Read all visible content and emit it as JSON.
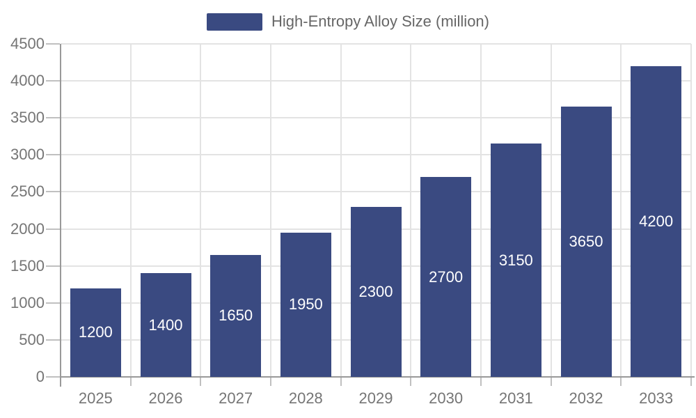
{
  "legend": {
    "label": "High-Entropy Alloy Size (million)"
  },
  "chart_data": {
    "type": "bar",
    "title": "",
    "xlabel": "",
    "ylabel": "",
    "categories": [
      "2025",
      "2026",
      "2027",
      "2028",
      "2029",
      "2030",
      "2031",
      "2032",
      "2033"
    ],
    "series": [
      {
        "name": "High-Entropy Alloy Size (million)",
        "values": [
          1200,
          1400,
          1650,
          1950,
          2300,
          2700,
          3150,
          3650,
          4200
        ]
      }
    ],
    "ylim": [
      0,
      4500
    ],
    "yticks": [
      0,
      500,
      1000,
      1500,
      2000,
      2500,
      3000,
      3500,
      4000,
      4500
    ],
    "grid": true,
    "legend_position": "top-center",
    "colors": {
      "bar": "#3A4A81",
      "bar_label": "#FFFFFF",
      "axis": "#999999",
      "grid": "#E3E3E3",
      "tick": "#C0C0C0",
      "tick_label": "#757575",
      "legend_text": "#666666"
    }
  }
}
